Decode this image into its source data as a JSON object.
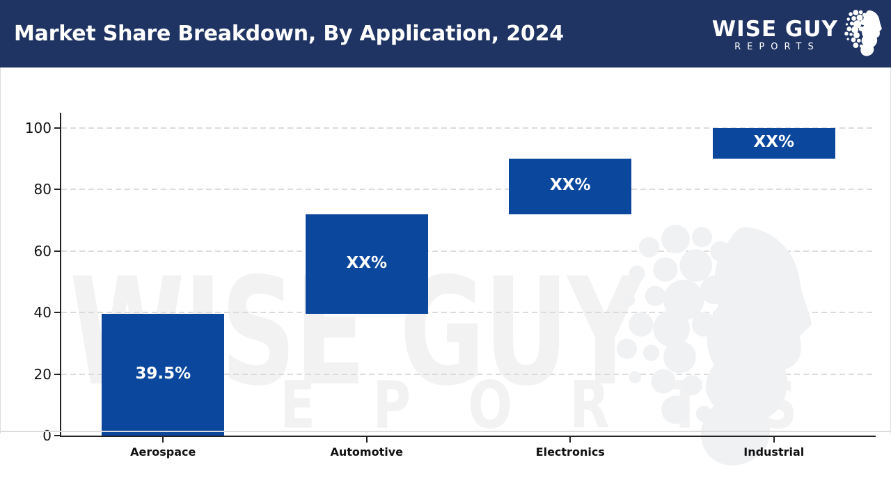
{
  "header": {
    "title": "Market Share Breakdown, By Application, 2024",
    "logo": {
      "line1": "WISE GUY",
      "line2": "REPORTS"
    }
  },
  "watermark": {
    "line1": "WISE GUY",
    "line2": "R E P O R T S"
  },
  "chart_data": {
    "type": "bar",
    "subtype": "waterfall",
    "title": "Market Share Breakdown, By Application, 2024",
    "categories": [
      "Aerospace",
      "Automotive",
      "Electronics",
      "Industrial"
    ],
    "segments": [
      {
        "category": "Aerospace",
        "start": 0,
        "end": 39.5,
        "label": "39.5%"
      },
      {
        "category": "Automotive",
        "start": 39.5,
        "end": 72,
        "label": "XX%"
      },
      {
        "category": "Electronics",
        "start": 72,
        "end": 90,
        "label": "XX%"
      },
      {
        "category": "Industrial",
        "start": 90,
        "end": 100,
        "label": "XX%"
      }
    ],
    "yticks": [
      0,
      20,
      40,
      60,
      80,
      100
    ],
    "ylim": [
      0,
      105
    ],
    "grid": "horizontal-dashed",
    "legend": "none",
    "bar_color": "#0b479d",
    "bar_label_color": "#ffffff",
    "axis_color": "#222222",
    "gridline_color": "#dbdbdb"
  },
  "colors": {
    "header_bg": "#1f3462",
    "watermark": "#f2f2f2",
    "face_watermark": "#f0f1f3"
  }
}
